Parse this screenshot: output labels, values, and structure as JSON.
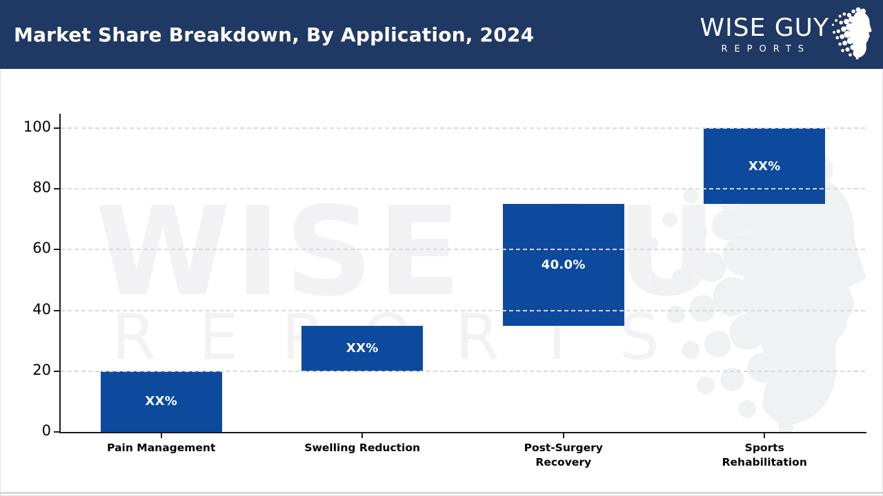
{
  "header": {
    "title": "Market Share Breakdown, By Application, 2024",
    "logo": {
      "line1": "WISE GUY",
      "line2": "REPORTS"
    }
  },
  "watermark": {
    "line1": "WISE GUY",
    "line2": "REPORTS"
  },
  "chart_data": {
    "type": "bar",
    "subtype": "floating-segment (waterfall style)",
    "title": "Market Share Breakdown, By Application, 2024",
    "categories": [
      "Pain Management",
      "Swelling Reduction",
      "Post-Surgery\nRecovery",
      "Sports\nRehabilitation"
    ],
    "segments": [
      {
        "category": "Pain Management",
        "start": 0,
        "end": 20,
        "label": "XX%"
      },
      {
        "category": "Swelling Reduction",
        "start": 20,
        "end": 35,
        "label": "XX%"
      },
      {
        "category": "Post-Surgery Recovery",
        "start": 35,
        "end": 75,
        "label": "40.0%"
      },
      {
        "category": "Sports Rehabilitation",
        "start": 75,
        "end": 100,
        "label": "XX%"
      }
    ],
    "xlabel": "",
    "ylabel": "",
    "ylim": [
      0,
      100
    ],
    "yticks": [
      0,
      20,
      40,
      60,
      80,
      100
    ],
    "grid": "horizontal dashed, drawn above bars",
    "legend": "none",
    "bar_color": "#0d4a9e",
    "bar_label_color": "#ffffff",
    "header_color": "#203864",
    "gridline_color": "#d9d9d9"
  }
}
